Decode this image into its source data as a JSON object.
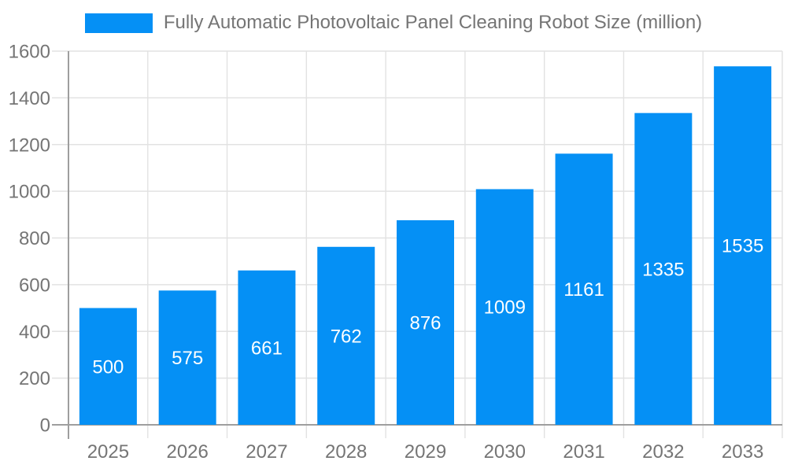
{
  "chart_data": {
    "type": "bar",
    "title": "",
    "categories": [
      "2025",
      "2026",
      "2027",
      "2028",
      "2029",
      "2030",
      "2031",
      "2032",
      "2033"
    ],
    "series": [
      {
        "name": "Fully Automatic Photovoltaic Panel Cleaning Robot Size (million)",
        "values": [
          500,
          575,
          661,
          762,
          876,
          1009,
          1161,
          1335,
          1535
        ]
      }
    ],
    "xlabel": "",
    "ylabel": "",
    "ylim": [
      0,
      1600
    ],
    "yticks": [
      0,
      200,
      400,
      600,
      800,
      1000,
      1200,
      1400,
      1600
    ],
    "grid": true,
    "legend_position": "top",
    "value_label_position": "inside-center",
    "colors": {
      "bar": "#0590f5",
      "grid": "#e2e2e2",
      "axis": "#9e9e9e",
      "tick_text": "#757575",
      "value_text": "#ffffff",
      "background": "#ffffff"
    }
  }
}
